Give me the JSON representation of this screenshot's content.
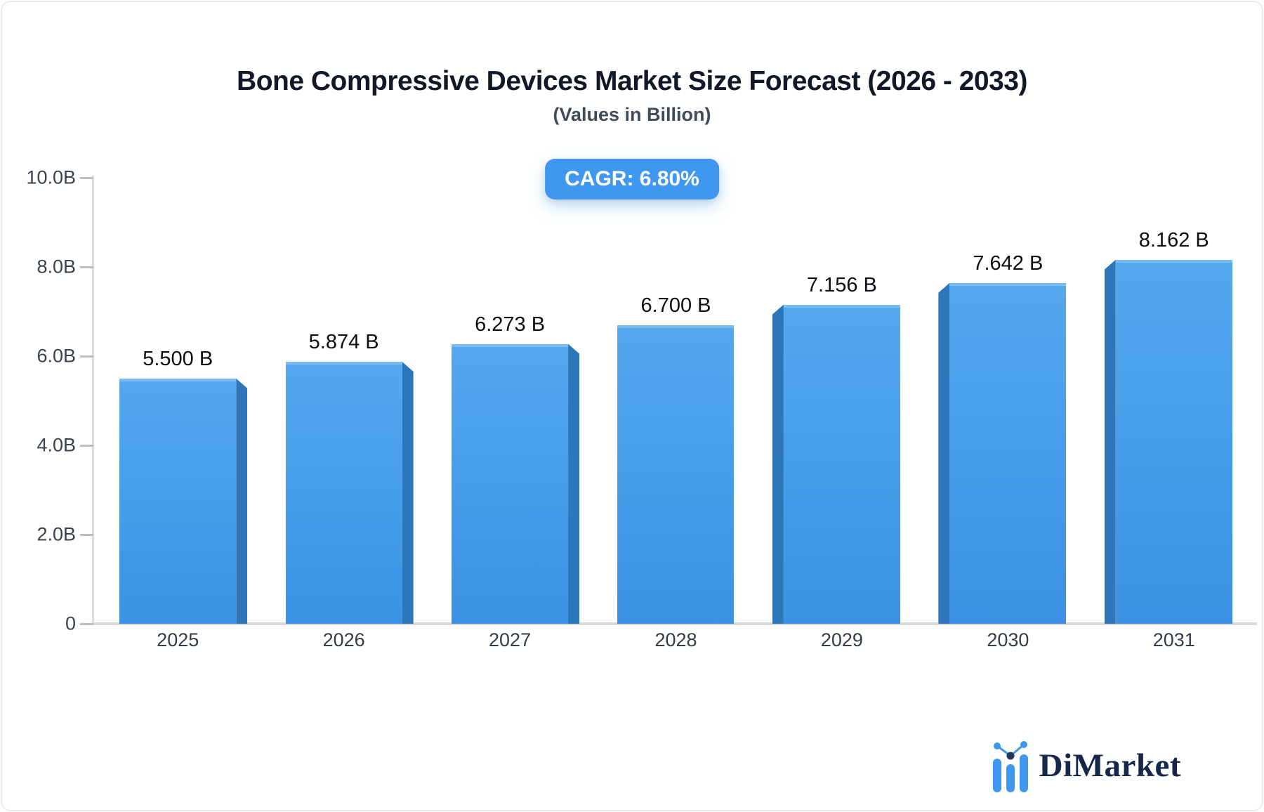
{
  "title": "Bone Compressive Devices Market Size Forecast (2026 - 2033)",
  "subtitle": "(Values in Billion)",
  "badge": {
    "label": "CAGR: 6.80%",
    "bg_color": "#3f97ef",
    "text_color": "#ffffff"
  },
  "chart_data": {
    "type": "bar",
    "title": "Bone Compressive Devices Market Size Forecast (2026 - 2033)",
    "subtitle": "(Values in Billion)",
    "categories": [
      "2025",
      "2026",
      "2027",
      "2028",
      "2029",
      "2030",
      "2031"
    ],
    "values": [
      5.5,
      5.874,
      6.273,
      6.7,
      7.156,
      7.642,
      8.162
    ],
    "value_labels": [
      "5.500 B",
      "5.874 B",
      "6.273 B",
      "6.700 B",
      "7.156 B",
      "7.642 B",
      "8.162 B"
    ],
    "xlabel": "",
    "ylabel": "",
    "ylim": [
      0,
      10
    ],
    "yticks": [
      0,
      2,
      4,
      6,
      8,
      10
    ],
    "ytick_labels": [
      "0",
      "2.0B",
      "4.0B",
      "6.0B",
      "8.0B",
      "10.0B"
    ],
    "grid": false,
    "legend": false,
    "bar_color_main": "#459ce9",
    "bar_color_side": "#2d76b9",
    "axis_color": "#d9dce1",
    "style": "3d-perspective-center"
  },
  "logo": {
    "text": "DiMarket",
    "icon": "mini-bar-chart-with-dots-icon",
    "icon_bar_color": "#3f97ef",
    "icon_dot_dark_color": "#21375f",
    "text_color": "#15284a"
  }
}
